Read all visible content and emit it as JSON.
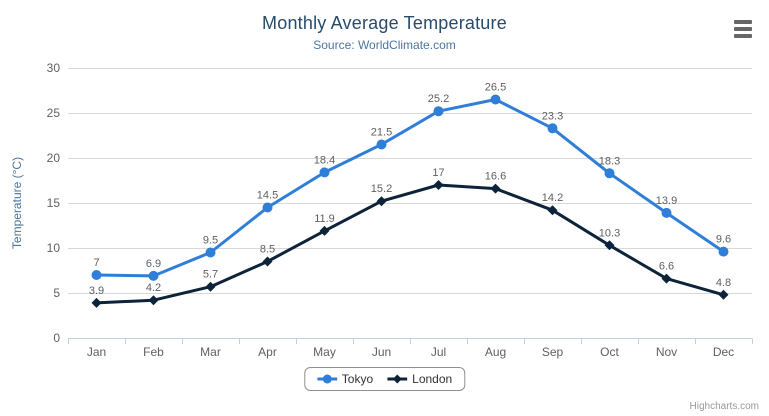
{
  "chart_data": {
    "type": "line",
    "title": "Monthly Average Temperature",
    "subtitle": "Source: WorldClimate.com",
    "xlabel": "",
    "ylabel": "Temperature (°C)",
    "ylim": [
      0,
      30
    ],
    "yticks": [
      0,
      5,
      10,
      15,
      20,
      25,
      30
    ],
    "grid": "horizontal-gridlines-on",
    "legend_position": "bottom-center",
    "data_labels_visible": true,
    "categories": [
      "Jan",
      "Feb",
      "Mar",
      "Apr",
      "May",
      "Jun",
      "Jul",
      "Aug",
      "Sep",
      "Oct",
      "Nov",
      "Dec"
    ],
    "series": [
      {
        "name": "Tokyo",
        "marker": "circle",
        "color": "#2f7ed8",
        "values": [
          7,
          6.9,
          9.5,
          14.5,
          18.4,
          21.5,
          25.2,
          26.5,
          23.3,
          18.3,
          13.9,
          9.6
        ]
      },
      {
        "name": "London",
        "marker": "diamond",
        "color": "#0d233a",
        "values": [
          3.9,
          4.2,
          5.7,
          8.5,
          11.9,
          15.2,
          17,
          16.6,
          14.2,
          10.3,
          6.6,
          4.8
        ]
      }
    ]
  },
  "colors": {
    "title": "#274b6d",
    "subtitle": "#4d759e",
    "axis_title": "#4d759e",
    "axis_labels": "#606060",
    "data_labels": "#606060",
    "gridline": "#d8d8d8",
    "axis_line": "#c0d0e0",
    "legend_text": "#333333",
    "legend_border": "#909090",
    "credits_text": "#999999",
    "menu_icon": "#666666"
  },
  "icons": {
    "context_menu": "hamburger-icon"
  },
  "credits": "Highcharts.com"
}
